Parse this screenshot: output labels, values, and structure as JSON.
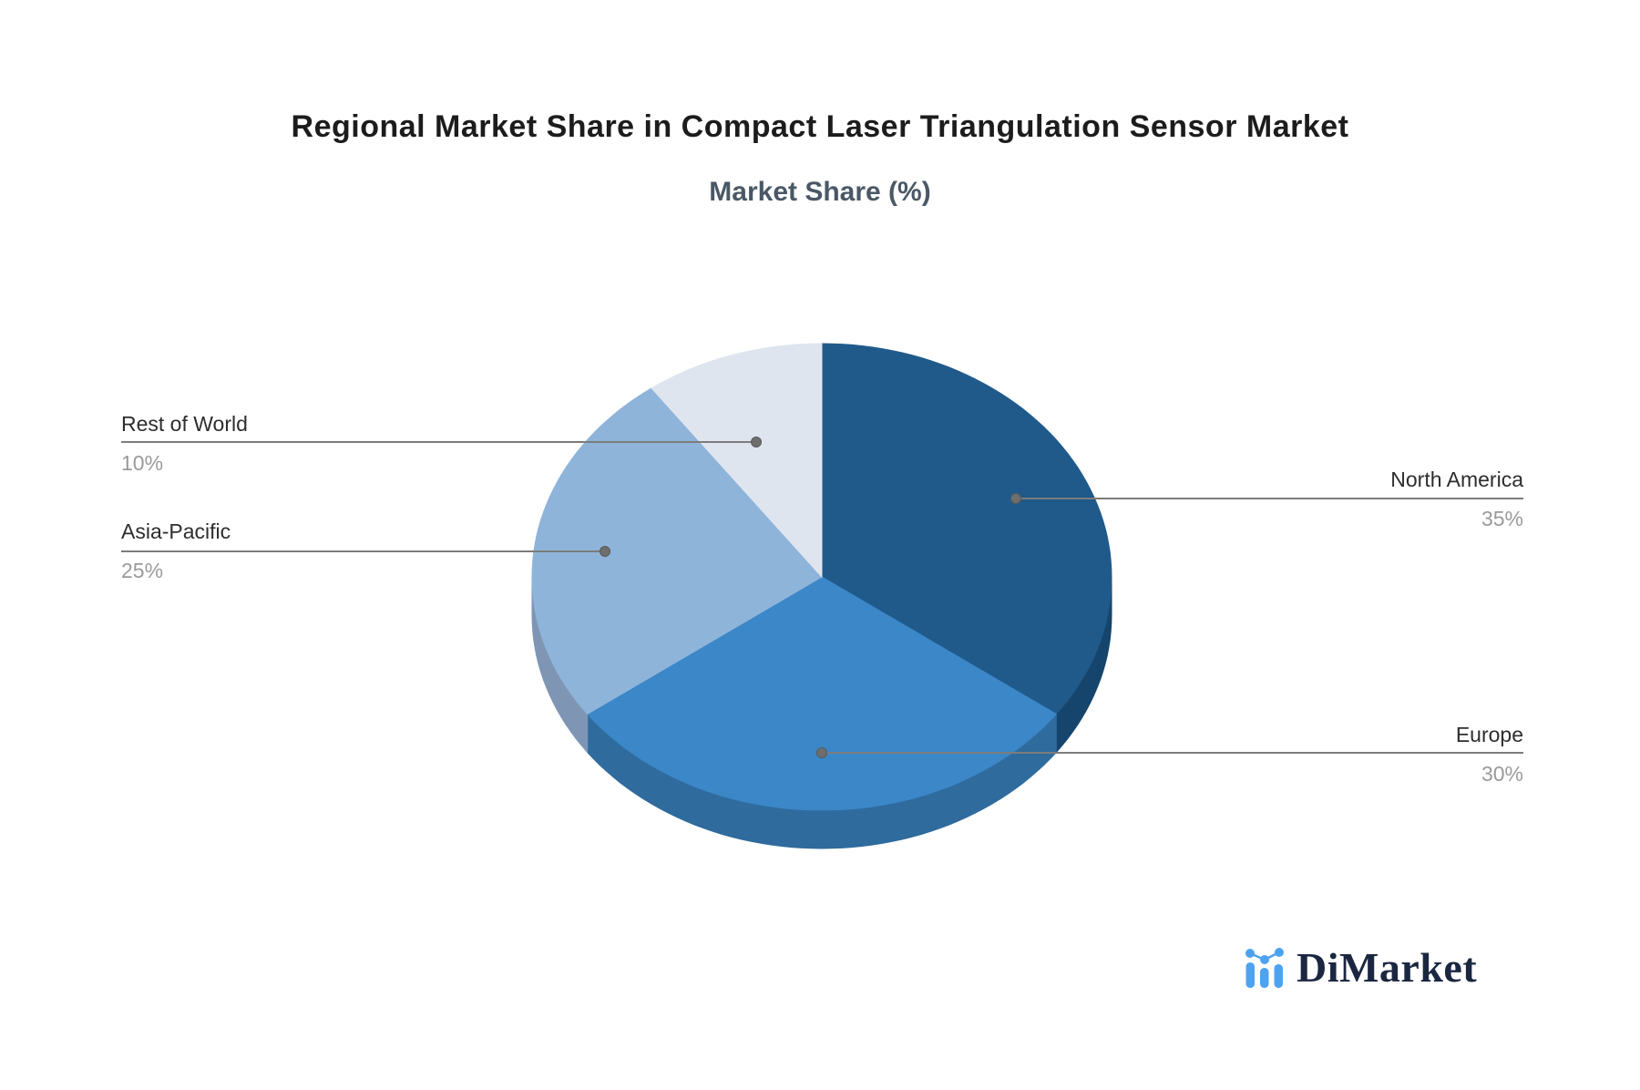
{
  "header": {
    "title": "Regional Market Share in Compact Laser Triangulation Sensor Market",
    "subtitle": "Market Share (%)"
  },
  "chart_data": {
    "type": "pie",
    "title": "Regional Market Share in Compact Laser Triangulation Sensor Market",
    "subtitle": "Market Share (%)",
    "unit": "%",
    "style": "3d-pie-with-depth",
    "start_angle": "12-o-clock",
    "direction": "clockwise",
    "legend": "none (leader-line callouts)",
    "slices": [
      {
        "label": "North America",
        "value": 35,
        "display": "35%",
        "color": "#205a8b",
        "side_color": "#15456c",
        "label_side": "right"
      },
      {
        "label": "Europe",
        "value": 30,
        "display": "30%",
        "color": "#3b87c8",
        "side_color": "#2f6b9d",
        "label_side": "right"
      },
      {
        "label": "Asia-Pacific",
        "value": 25,
        "display": "25%",
        "color": "#8fb4da",
        "side_color": "#7e96b4",
        "label_side": "left"
      },
      {
        "label": "Rest of World",
        "value": 10,
        "display": "10%",
        "color": "#dfe5ef",
        "side_color": "#c5d0de",
        "label_side": "left"
      }
    ]
  },
  "logo": {
    "brand": "DiMarket"
  },
  "colors": {
    "background": "#ffffff",
    "title_text": "#1c1c1c",
    "subtitle_text": "#4a5866",
    "label_text": "#2d2d2d",
    "percent_text": "#9a9a9a",
    "leader_line": "#7c7c7c",
    "leader_dot": "#6e6e6e",
    "logo_text": "#1b2640",
    "logo_icon": "#4da3f0"
  }
}
